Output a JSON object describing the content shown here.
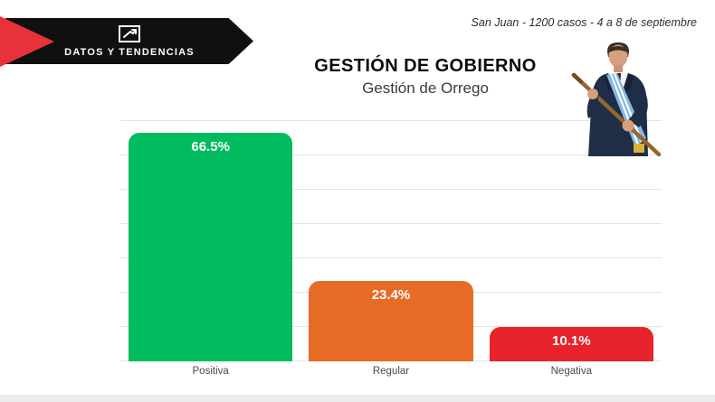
{
  "header": {
    "logo_label": "DATOS Y TENDENCIAS",
    "logo_icon": "trend-chart-icon",
    "meta_caption": "San Juan - 1200 casos - 4 a 8 de septiembre"
  },
  "title": {
    "main": "GESTIÓN DE GOBIERNO",
    "subtitle": "Gestión de Orrego"
  },
  "photo": {
    "semantic": "governor-orrego-presidential-sash-photo"
  },
  "chart_data": {
    "type": "bar",
    "title": "GESTIÓN DE GOBIERNO",
    "subtitle": "Gestión de Orrego",
    "categories": [
      "Positiva",
      "Regular",
      "Negativa"
    ],
    "values": [
      66.5,
      23.4,
      10.1
    ],
    "value_labels": [
      "66.5%",
      "23.4%",
      "10.1%"
    ],
    "bar_colors": [
      "#00bc5f",
      "#e66b27",
      "#e8232c"
    ],
    "xlabel": "",
    "ylabel": "",
    "ylim": [
      0,
      70
    ],
    "gridline_step": 10,
    "grid": true,
    "legend": false
  },
  "colors": {
    "positive_green": "#00bc5f",
    "regular_orange": "#e66b27",
    "negative_red": "#e8232c",
    "banner_black": "#101010",
    "banner_red": "#e73239",
    "gridline_gray": "#e4e4e4",
    "footer_gray": "#ececec"
  }
}
